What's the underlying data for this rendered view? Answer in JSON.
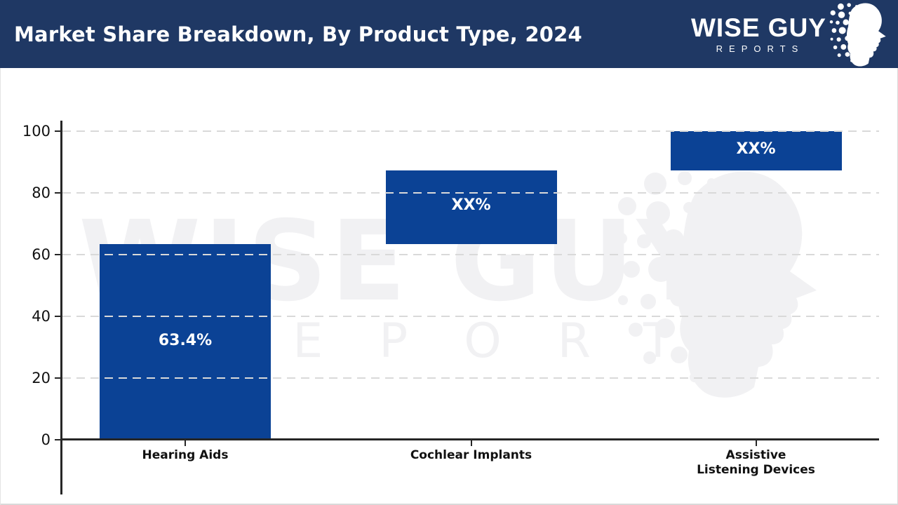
{
  "header": {
    "title": "Market Share Breakdown, By Product Type, 2024",
    "logo_line1": "WISE GUY",
    "logo_line2": "REPORTS",
    "bg_color": "#1f3864"
  },
  "watermark": {
    "line1": "WISE GUY",
    "line2": "REPORTS"
  },
  "chart_data": {
    "type": "bar",
    "subtype": "waterfall",
    "title": "Market Share Breakdown, By Product Type, 2024",
    "categories": [
      "Hearing Aids",
      "Cochlear Implants",
      "Assistive Listening Devices"
    ],
    "bars": [
      {
        "category": "Hearing Aids",
        "tick_label": "Hearing Aids",
        "start": 0,
        "end": 63.4,
        "label": "63.4%"
      },
      {
        "category": "Cochlear Implants",
        "tick_label": "Cochlear Implants",
        "start": 63.4,
        "end": 87.3,
        "label": "XX%"
      },
      {
        "category": "Assistive Listening Devices",
        "tick_label": "Assistive\nListening Devices",
        "start": 87.3,
        "end": 100,
        "label": "XX%"
      }
    ],
    "ylim": [
      0,
      100
    ],
    "yticks": [
      0,
      20,
      40,
      60,
      80,
      100
    ],
    "grid": "horizontal-dashed",
    "legend": "none",
    "bar_color": "#0b4295",
    "bar_label_color": "#ffffff",
    "gridline_color": "#d9d9d9",
    "axis_color": "#262626"
  }
}
